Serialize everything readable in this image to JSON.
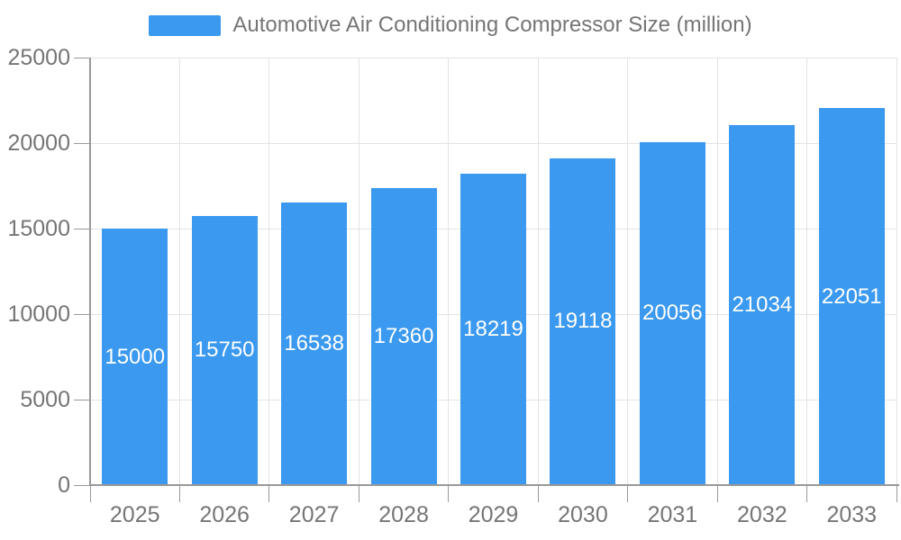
{
  "legend": {
    "label": "Automotive Air Conditioning Compressor Size (million)"
  },
  "chart_data": {
    "type": "bar",
    "title": "Automotive Air Conditioning Compressor Size (million)",
    "categories": [
      "2025",
      "2026",
      "2027",
      "2028",
      "2029",
      "2030",
      "2031",
      "2032",
      "2033"
    ],
    "values": [
      15000,
      15750,
      16538,
      17360,
      18219,
      19118,
      20056,
      21034,
      22051
    ],
    "bar_labels": [
      "15000",
      "15750",
      "16538",
      "17360",
      "18219",
      "19118",
      "20056",
      "21034",
      "22051"
    ],
    "xlabel": "",
    "ylabel": "",
    "ylim": [
      0,
      25000
    ],
    "yticks": [
      0,
      5000,
      10000,
      15000,
      20000,
      25000
    ],
    "grid": true,
    "legend_position": "top-center",
    "bar_label_position": "inside-center",
    "colors": {
      "bar": "#3B99F0",
      "axis_line": "#999999",
      "grid_line": "#E3E3E3",
      "text": "#757575",
      "bar_label": "#FFFFFF",
      "background": "#FFFFFF"
    }
  }
}
